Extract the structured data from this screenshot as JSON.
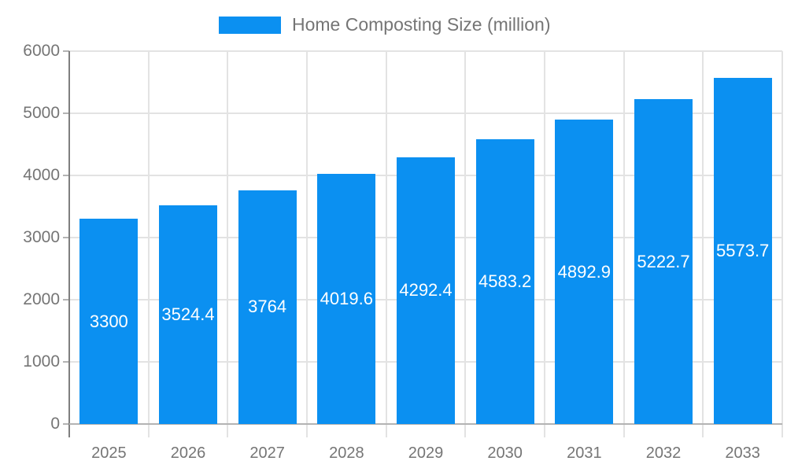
{
  "chart_data": {
    "type": "bar",
    "title": "Home Composting Size (million)",
    "legend": {
      "label": "Home Composting Size (million)",
      "position": "top-center"
    },
    "categories": [
      "2025",
      "2026",
      "2027",
      "2028",
      "2029",
      "2030",
      "2031",
      "2032",
      "2033"
    ],
    "series": [
      {
        "name": "Home Composting Size (million)",
        "values": [
          3300,
          3524.4,
          3764,
          4019.6,
          4292.4,
          4583.2,
          4892.9,
          5222.7,
          5573.7
        ]
      }
    ],
    "value_labels": [
      "3300",
      "3524.4",
      "3764",
      "4019.6",
      "4292.4",
      "4583.2",
      "4892.9",
      "5222.7",
      "5573.7"
    ],
    "xlabel": "",
    "ylabel": "",
    "ylim": [
      0,
      6000
    ],
    "yticks": [
      0,
      1000,
      2000,
      3000,
      4000,
      5000,
      6000
    ],
    "grid": true,
    "colors": {
      "bar": "#0b90f1",
      "grid": "#e3e3e3",
      "axis": "#7f7f7f",
      "baseline": "#b3b3b3",
      "tick_text": "#757575",
      "value_label_text": "#ffffff",
      "legend_text": "#757575",
      "background": "#ffffff"
    }
  }
}
